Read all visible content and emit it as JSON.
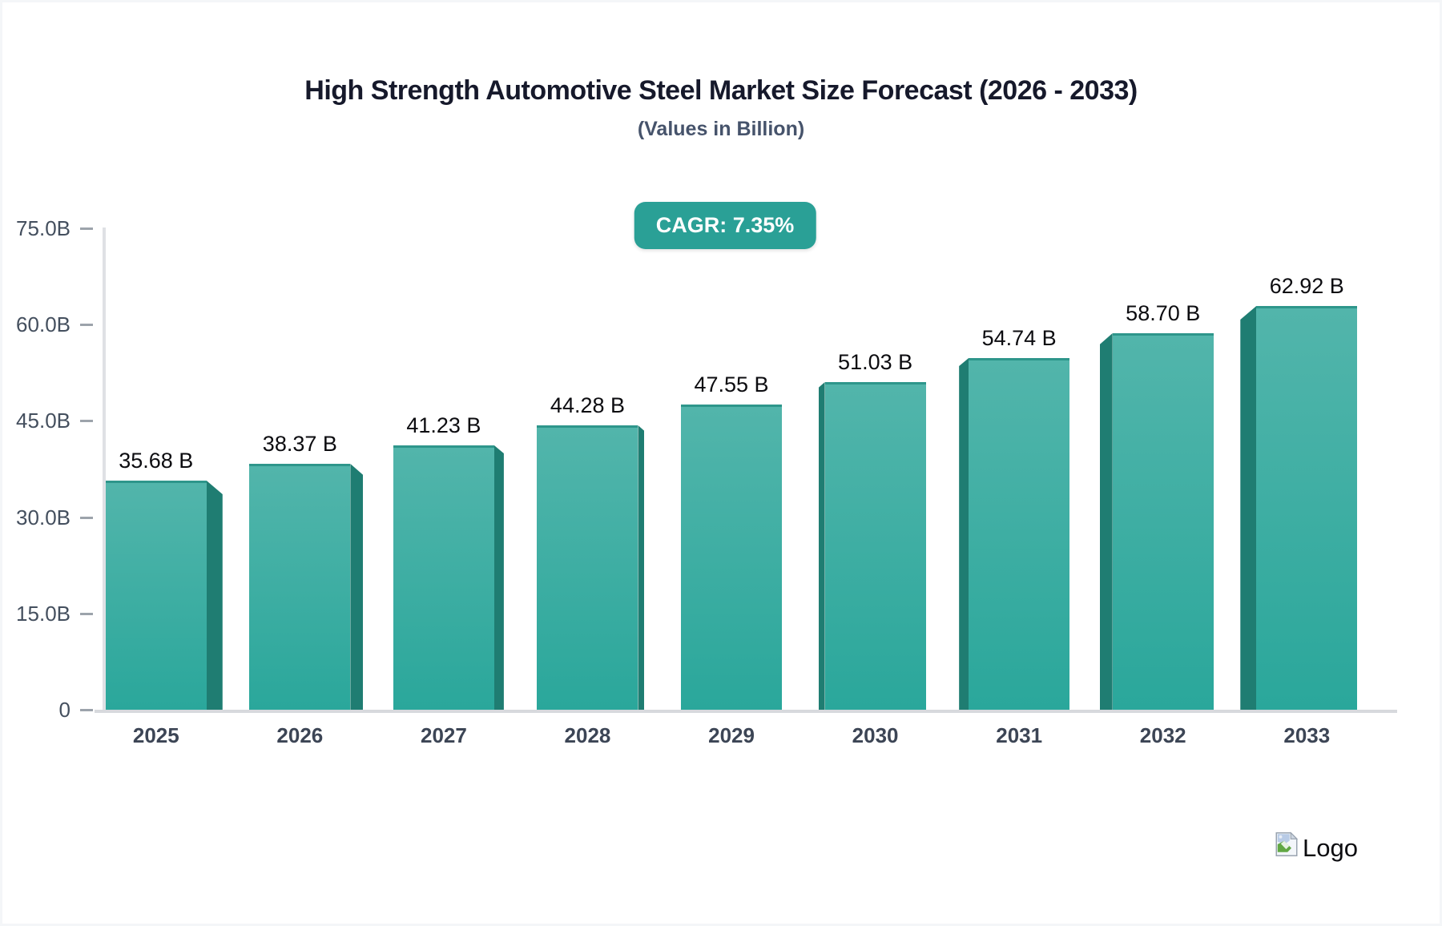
{
  "page": {
    "title": "High Strength Automotive Steel Market Size Forecast (2026 - 2033)",
    "subtitle": "(Values in Billion)"
  },
  "badge": {
    "label": "CAGR: 7.35%"
  },
  "logo": {
    "alt": "Logo"
  },
  "colors": {
    "title_text": "#16192b",
    "subtitle_text": "#46536b",
    "badge_bg": "#2aa096",
    "bar_face_top": "#52b5ab",
    "bar_face_bottom": "#2aa79b",
    "bar_side": "#1f7d72",
    "axis_line": "#dfe1e5",
    "baseline": "#d7d9dd",
    "value_text": "#0c0c10",
    "year_text": "#3c4555",
    "ytick_text": "#444f5e"
  },
  "chart_data": {
    "type": "bar",
    "title": "High Strength Automotive Steel Market Size Forecast (2026 - 2033)",
    "subtitle": "(Values in Billion)",
    "annotation": "CAGR: 7.35%",
    "categories": [
      "2025",
      "2026",
      "2027",
      "2028",
      "2029",
      "2030",
      "2031",
      "2032",
      "2033"
    ],
    "values": [
      35.68,
      38.37,
      41.23,
      44.28,
      47.55,
      51.03,
      54.74,
      58.7,
      62.92
    ],
    "value_labels": [
      "35.68 B",
      "38.37 B",
      "41.23 B",
      "44.28 B",
      "47.55 B",
      "51.03 B",
      "54.74 B",
      "58.70 B",
      "62.92 B"
    ],
    "xlabel": "",
    "ylabel": "",
    "ylim": [
      0,
      75
    ],
    "yticks": [
      {
        "value": 0,
        "label": "0"
      },
      {
        "value": 15,
        "label": "15.0B"
      },
      {
        "value": 30,
        "label": "30.0B"
      },
      {
        "value": 45,
        "label": "45.0B"
      },
      {
        "value": 60,
        "label": "60.0B"
      },
      {
        "value": 75,
        "label": "75.0B"
      }
    ],
    "grid": false,
    "legend": false,
    "bar_style": "pseudo-3d teal bars with center vanishing point"
  }
}
